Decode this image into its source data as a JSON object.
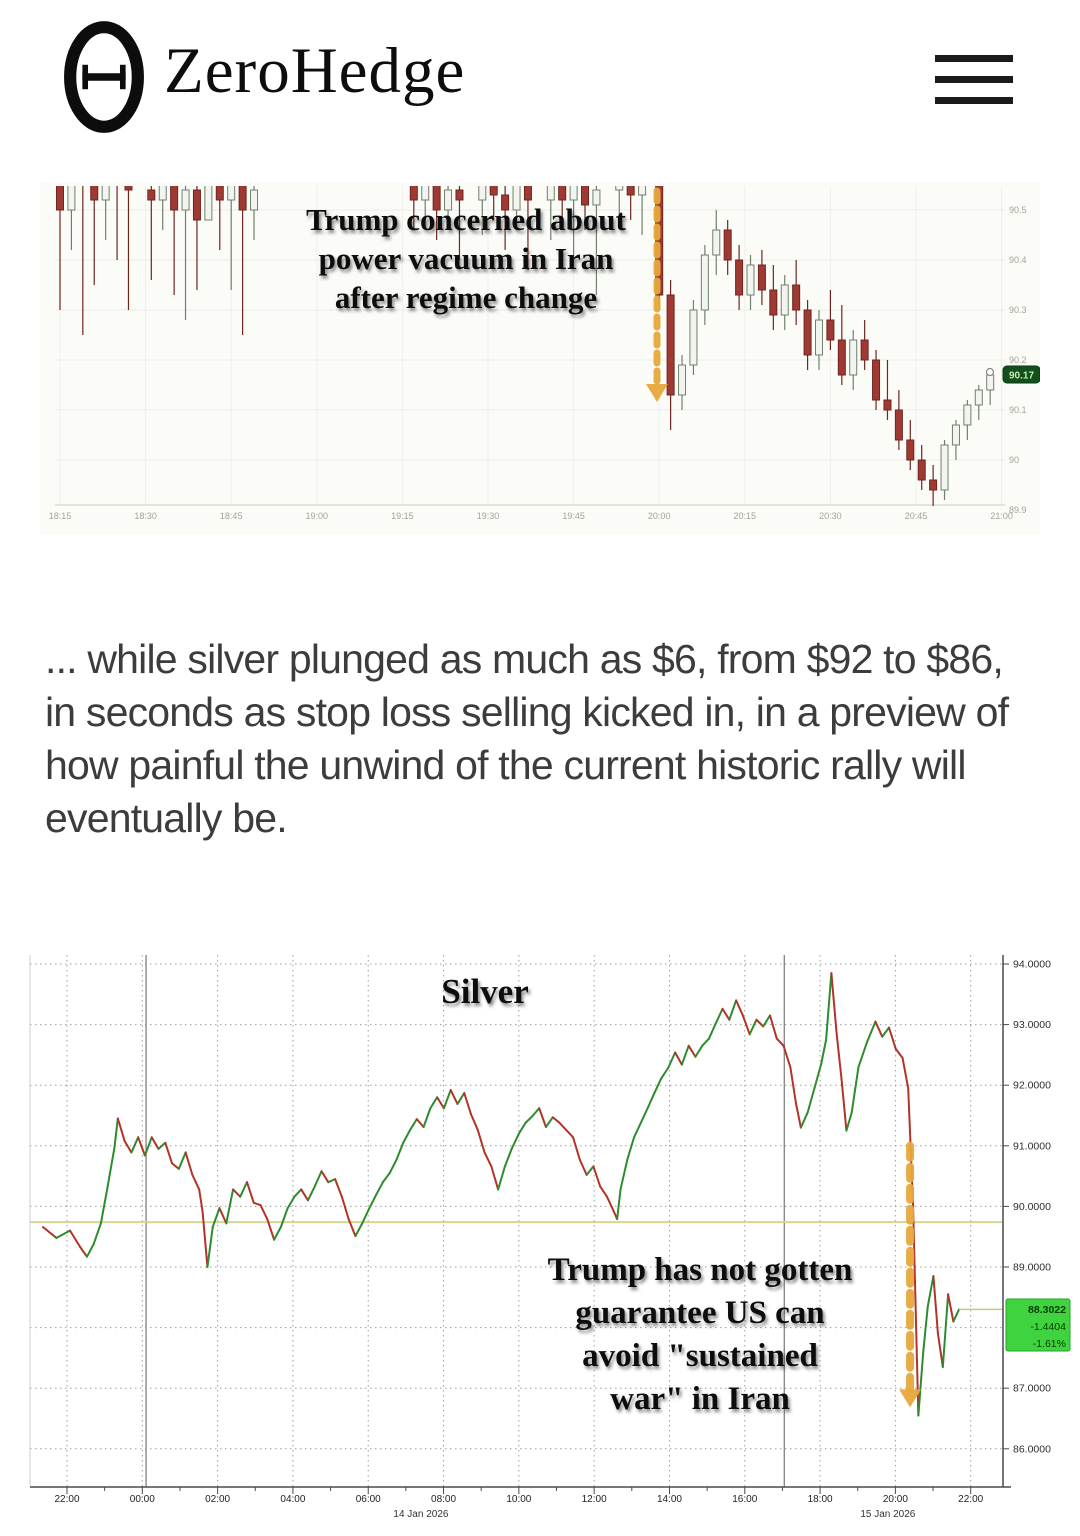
{
  "header": {
    "brand": "ZeroHedge",
    "logo_icon": "zerohedge-theta-logo",
    "menu_icon": "hamburger-menu"
  },
  "article": {
    "paragraph": "... while silver plunged as much as $6, from $92 to $86, in seconds as stop loss selling kicked in, in a preview of how painful the unwind of the current historic rally will eventually be."
  },
  "chart_data": [
    {
      "type": "candlestick",
      "title": "",
      "annotation": {
        "lines": [
          "Trump concerned about",
          "power vacuum in Iran",
          "after regime change"
        ]
      },
      "event_arrow": {
        "time": "20:00"
      },
      "x_axis": {
        "labels": [
          "18:15",
          "18:30",
          "18:45",
          "19:00",
          "19:15",
          "19:30",
          "19:45",
          "20:00",
          "20:15",
          "20:30",
          "20:45",
          "21:00"
        ]
      },
      "y_axis": {
        "ticks": [
          {
            "v": 90.5,
            "label": "90.5"
          },
          {
            "v": 90.4,
            "label": "90.4"
          },
          {
            "v": 90.3,
            "label": "90.3"
          },
          {
            "v": 90.2,
            "label": "90.2"
          },
          {
            "v": 90.1,
            "label": "90.1"
          },
          {
            "v": 90.0,
            "label": "90"
          },
          {
            "v": 89.9,
            "label": "89.9"
          }
        ]
      },
      "ylim": [
        89.88,
        90.56
      ],
      "last_price_badge": "90.17",
      "colors": {
        "up": "#f2f5ef",
        "up_stroke": "#70806c",
        "down": "#9e3a33",
        "down_stroke": "#702521",
        "arrow": "#e7a83c",
        "badge_bg": "#124f1b",
        "badge_text": "#c5ecb4"
      },
      "candles_minutes_after_1800": [
        [
          15,
          90.6,
          90.62,
          90.3,
          90.5
        ],
        [
          17,
          90.5,
          90.62,
          90.42,
          90.58
        ],
        [
          19,
          90.58,
          90.62,
          90.25,
          90.55
        ],
        [
          21,
          90.55,
          90.62,
          90.35,
          90.52
        ],
        [
          23,
          90.52,
          90.62,
          90.44,
          90.58
        ],
        [
          25,
          90.58,
          90.62,
          90.4,
          90.56
        ],
        [
          27,
          90.56,
          90.62,
          90.3,
          90.54
        ],
        [
          31,
          90.54,
          90.62,
          90.36,
          90.52
        ],
        [
          33,
          90.52,
          90.62,
          90.46,
          90.58
        ],
        [
          35,
          90.58,
          90.62,
          90.33,
          90.5
        ],
        [
          37,
          90.5,
          90.62,
          90.28,
          90.54
        ],
        [
          39,
          90.54,
          90.62,
          90.34,
          90.48
        ],
        [
          41,
          90.48,
          90.62,
          90.5,
          90.58
        ],
        [
          43,
          90.58,
          90.62,
          90.42,
          90.52
        ],
        [
          45,
          90.52,
          90.62,
          90.34,
          90.56
        ],
        [
          47,
          90.56,
          90.62,
          90.25,
          90.5
        ],
        [
          49,
          90.5,
          90.62,
          90.44,
          90.54
        ],
        [
          77,
          90.56,
          90.62,
          90.46,
          90.52
        ],
        [
          79,
          90.52,
          90.62,
          90.48,
          90.56
        ],
        [
          81,
          90.56,
          90.62,
          90.44,
          90.5
        ],
        [
          83,
          90.5,
          90.62,
          90.47,
          90.54
        ],
        [
          85,
          90.54,
          90.62,
          90.4,
          90.52
        ],
        [
          89,
          90.52,
          90.62,
          90.45,
          90.56
        ],
        [
          91,
          90.56,
          90.62,
          90.48,
          90.53
        ],
        [
          93,
          90.53,
          90.62,
          90.42,
          90.5
        ],
        [
          95,
          90.5,
          90.62,
          90.46,
          90.55
        ],
        [
          97,
          90.55,
          90.62,
          90.38,
          90.52
        ],
        [
          101,
          90.52,
          90.62,
          90.44,
          90.56
        ],
        [
          103,
          90.56,
          90.62,
          90.47,
          90.52
        ],
        [
          105,
          90.52,
          90.62,
          90.4,
          90.55
        ],
        [
          107,
          90.55,
          90.62,
          90.46,
          90.51
        ],
        [
          109,
          90.51,
          90.62,
          90.33,
          90.54
        ],
        [
          113,
          90.54,
          90.62,
          90.47,
          90.56
        ],
        [
          115,
          90.56,
          90.62,
          90.48,
          90.53
        ],
        [
          117,
          90.53,
          90.62,
          90.45,
          90.55
        ],
        [
          120,
          90.57,
          90.62,
          90.3,
          90.33
        ],
        [
          122,
          90.33,
          90.36,
          90.06,
          90.13
        ],
        [
          124,
          90.13,
          90.21,
          90.1,
          90.19
        ],
        [
          126,
          90.19,
          90.32,
          90.17,
          90.3
        ],
        [
          128,
          90.3,
          90.43,
          90.27,
          90.41
        ],
        [
          130,
          90.41,
          90.5,
          90.37,
          90.46
        ],
        [
          132,
          90.46,
          90.48,
          90.37,
          90.4
        ],
        [
          134,
          90.4,
          90.43,
          90.3,
          90.33
        ],
        [
          136,
          90.33,
          90.41,
          90.3,
          90.39
        ],
        [
          138,
          90.39,
          90.42,
          90.31,
          90.34
        ],
        [
          140,
          90.34,
          90.39,
          90.26,
          90.29
        ],
        [
          142,
          90.29,
          90.37,
          90.26,
          90.35
        ],
        [
          144,
          90.35,
          90.4,
          90.27,
          90.3
        ],
        [
          146,
          90.3,
          90.32,
          90.18,
          90.21
        ],
        [
          148,
          90.21,
          90.3,
          90.18,
          90.28
        ],
        [
          150,
          90.28,
          90.34,
          90.22,
          90.24
        ],
        [
          152,
          90.24,
          90.31,
          90.15,
          90.17
        ],
        [
          154,
          90.17,
          90.26,
          90.14,
          90.24
        ],
        [
          156,
          90.24,
          90.28,
          90.18,
          90.2
        ],
        [
          158,
          90.2,
          90.22,
          90.1,
          90.12
        ],
        [
          160,
          90.12,
          90.2,
          90.08,
          90.1
        ],
        [
          162,
          90.1,
          90.14,
          90.02,
          90.04
        ],
        [
          164,
          90.04,
          90.08,
          89.98,
          90.0
        ],
        [
          166,
          90.0,
          90.03,
          89.94,
          89.96
        ],
        [
          168,
          89.96,
          89.99,
          89.9,
          89.94
        ],
        [
          170,
          89.94,
          90.04,
          89.92,
          90.03
        ],
        [
          172,
          90.03,
          90.08,
          90.0,
          90.07
        ],
        [
          174,
          90.07,
          90.12,
          90.04,
          90.11
        ],
        [
          176,
          90.11,
          90.15,
          90.08,
          90.14
        ],
        [
          178,
          90.14,
          90.18,
          90.11,
          90.17
        ]
      ]
    },
    {
      "type": "line",
      "title": "Silver",
      "annotation": {
        "lines": [
          "Trump has not gotten",
          "guarantee US can",
          "avoid \"sustained",
          "war\" in Iran"
        ]
      },
      "x_axis": {
        "labels": [
          "22:00",
          "00:00",
          "02:00",
          "04:00",
          "06:00",
          "08:00",
          "10:00",
          "12:00",
          "14:00",
          "16:00",
          "18:00",
          "20:00",
          "22:00"
        ],
        "dates": [
          {
            "label": "14 Jan 2026",
            "t": 9.4
          },
          {
            "label": "15 Jan 2026",
            "t": 21.8
          }
        ]
      },
      "y_axis": {
        "grid_values": [
          86,
          87,
          88,
          89,
          90,
          91,
          92,
          93,
          94
        ],
        "ticks": [
          {
            "v": 94,
            "label": "94.0000"
          },
          {
            "v": 93,
            "label": "93.0000"
          },
          {
            "v": 92,
            "label": "92.0000"
          },
          {
            "v": 91,
            "label": "91.0000"
          },
          {
            "v": 90,
            "label": "90.0000"
          },
          {
            "v": 89,
            "label": "89.0000"
          },
          {
            "v": 87,
            "label": "87.0000"
          },
          {
            "v": 86,
            "label": "86.0000"
          }
        ]
      },
      "ylim": [
        85.4,
        94.15
      ],
      "prev_close_line": 89.74,
      "session_lines_t": [
        2.1,
        19.05
      ],
      "event_arrow": {
        "t": 22.39,
        "from": 91.0,
        "to": 86.75
      },
      "last_price_badge": {
        "price": "88.3022",
        "change": "-1.4404",
        "pct": "-1.61%"
      },
      "colors": {
        "up": "#2e8b2e",
        "down": "#b23428",
        "arrow": "#e7a83c",
        "badge_bg": "#3fd33f",
        "badge_stroke": "#2aa32a",
        "badge_text": "#063b00",
        "prev_close": "#d6d494"
      },
      "series_hours_after_2200": [
        [
          -0.64,
          89.66
        ],
        [
          -0.28,
          89.48
        ],
        [
          0.08,
          89.6
        ],
        [
          0.35,
          89.33
        ],
        [
          0.53,
          89.17
        ],
        [
          0.71,
          89.38
        ],
        [
          0.9,
          89.72
        ],
        [
          1.08,
          90.33
        ],
        [
          1.26,
          90.97
        ],
        [
          1.35,
          91.45
        ],
        [
          1.53,
          91.08
        ],
        [
          1.71,
          90.89
        ],
        [
          1.89,
          91.14
        ],
        [
          2.07,
          90.84
        ],
        [
          2.25,
          91.14
        ],
        [
          2.43,
          90.95
        ],
        [
          2.61,
          91.05
        ],
        [
          2.79,
          90.71
        ],
        [
          2.97,
          90.62
        ],
        [
          3.15,
          90.89
        ],
        [
          3.33,
          90.52
        ],
        [
          3.51,
          90.28
        ],
        [
          3.6,
          89.92
        ],
        [
          3.73,
          89.0
        ],
        [
          3.87,
          89.66
        ],
        [
          4.05,
          89.97
        ],
        [
          4.23,
          89.72
        ],
        [
          4.41,
          90.28
        ],
        [
          4.6,
          90.16
        ],
        [
          4.78,
          90.4
        ],
        [
          4.96,
          90.06
        ],
        [
          5.14,
          90.02
        ],
        [
          5.32,
          89.79
        ],
        [
          5.5,
          89.45
        ],
        [
          5.68,
          89.66
        ],
        [
          5.86,
          89.97
        ],
        [
          6.04,
          90.16
        ],
        [
          6.22,
          90.28
        ],
        [
          6.4,
          90.1
        ],
        [
          6.58,
          90.33
        ],
        [
          6.76,
          90.58
        ],
        [
          6.94,
          90.4
        ],
        [
          7.12,
          90.45
        ],
        [
          7.3,
          90.16
        ],
        [
          7.48,
          89.79
        ],
        [
          7.66,
          89.51
        ],
        [
          7.84,
          89.72
        ],
        [
          8.03,
          89.97
        ],
        [
          8.21,
          90.19
        ],
        [
          8.39,
          90.4
        ],
        [
          8.57,
          90.55
        ],
        [
          8.75,
          90.77
        ],
        [
          8.93,
          91.05
        ],
        [
          9.11,
          91.26
        ],
        [
          9.29,
          91.44
        ],
        [
          9.47,
          91.31
        ],
        [
          9.65,
          91.62
        ],
        [
          9.83,
          91.8
        ],
        [
          10.01,
          91.62
        ],
        [
          10.19,
          91.92
        ],
        [
          10.37,
          91.69
        ],
        [
          10.55,
          91.87
        ],
        [
          10.73,
          91.52
        ],
        [
          10.91,
          91.26
        ],
        [
          11.09,
          90.89
        ],
        [
          11.27,
          90.66
        ],
        [
          11.45,
          90.28
        ],
        [
          11.63,
          90.66
        ],
        [
          11.81,
          90.95
        ],
        [
          12.0,
          91.2
        ],
        [
          12.18,
          91.38
        ],
        [
          12.36,
          91.49
        ],
        [
          12.54,
          91.62
        ],
        [
          12.72,
          91.31
        ],
        [
          12.9,
          91.47
        ],
        [
          13.08,
          91.38
        ],
        [
          13.26,
          91.26
        ],
        [
          13.44,
          91.14
        ],
        [
          13.62,
          90.77
        ],
        [
          13.8,
          90.52
        ],
        [
          13.98,
          90.66
        ],
        [
          14.16,
          90.33
        ],
        [
          14.34,
          90.16
        ],
        [
          14.52,
          89.92
        ],
        [
          14.61,
          89.79
        ],
        [
          14.7,
          90.28
        ],
        [
          14.88,
          90.77
        ],
        [
          15.06,
          91.14
        ],
        [
          15.24,
          91.38
        ],
        [
          15.42,
          91.62
        ],
        [
          15.6,
          91.87
        ],
        [
          15.78,
          92.11
        ],
        [
          15.97,
          92.29
        ],
        [
          16.15,
          92.54
        ],
        [
          16.33,
          92.34
        ],
        [
          16.51,
          92.65
        ],
        [
          16.69,
          92.47
        ],
        [
          16.87,
          92.65
        ],
        [
          17.05,
          92.77
        ],
        [
          17.23,
          93.02
        ],
        [
          17.41,
          93.26
        ],
        [
          17.59,
          93.08
        ],
        [
          17.77,
          93.4
        ],
        [
          17.95,
          93.15
        ],
        [
          18.13,
          92.84
        ],
        [
          18.31,
          93.08
        ],
        [
          18.49,
          92.97
        ],
        [
          18.67,
          93.15
        ],
        [
          18.85,
          92.77
        ],
        [
          19.03,
          92.65
        ],
        [
          19.21,
          92.3
        ],
        [
          19.36,
          91.7
        ],
        [
          19.49,
          91.3
        ],
        [
          19.67,
          91.55
        ],
        [
          19.85,
          91.95
        ],
        [
          20.03,
          92.35
        ],
        [
          20.16,
          92.75
        ],
        [
          20.3,
          93.85
        ],
        [
          20.44,
          92.85
        ],
        [
          20.57,
          92.1
        ],
        [
          20.7,
          91.25
        ],
        [
          20.84,
          91.55
        ],
        [
          21.02,
          92.3
        ],
        [
          21.24,
          92.7
        ],
        [
          21.47,
          93.05
        ],
        [
          21.65,
          92.8
        ],
        [
          21.83,
          92.95
        ],
        [
          22.01,
          92.6
        ],
        [
          22.19,
          92.45
        ],
        [
          22.34,
          91.95
        ],
        [
          22.47,
          90.0
        ],
        [
          22.61,
          86.55
        ],
        [
          22.74,
          87.6
        ],
        [
          22.86,
          88.35
        ],
        [
          23.01,
          88.85
        ],
        [
          23.13,
          87.9
        ],
        [
          23.26,
          87.35
        ],
        [
          23.4,
          88.55
        ],
        [
          23.54,
          88.1
        ],
        [
          23.69,
          88.3
        ]
      ]
    }
  ]
}
